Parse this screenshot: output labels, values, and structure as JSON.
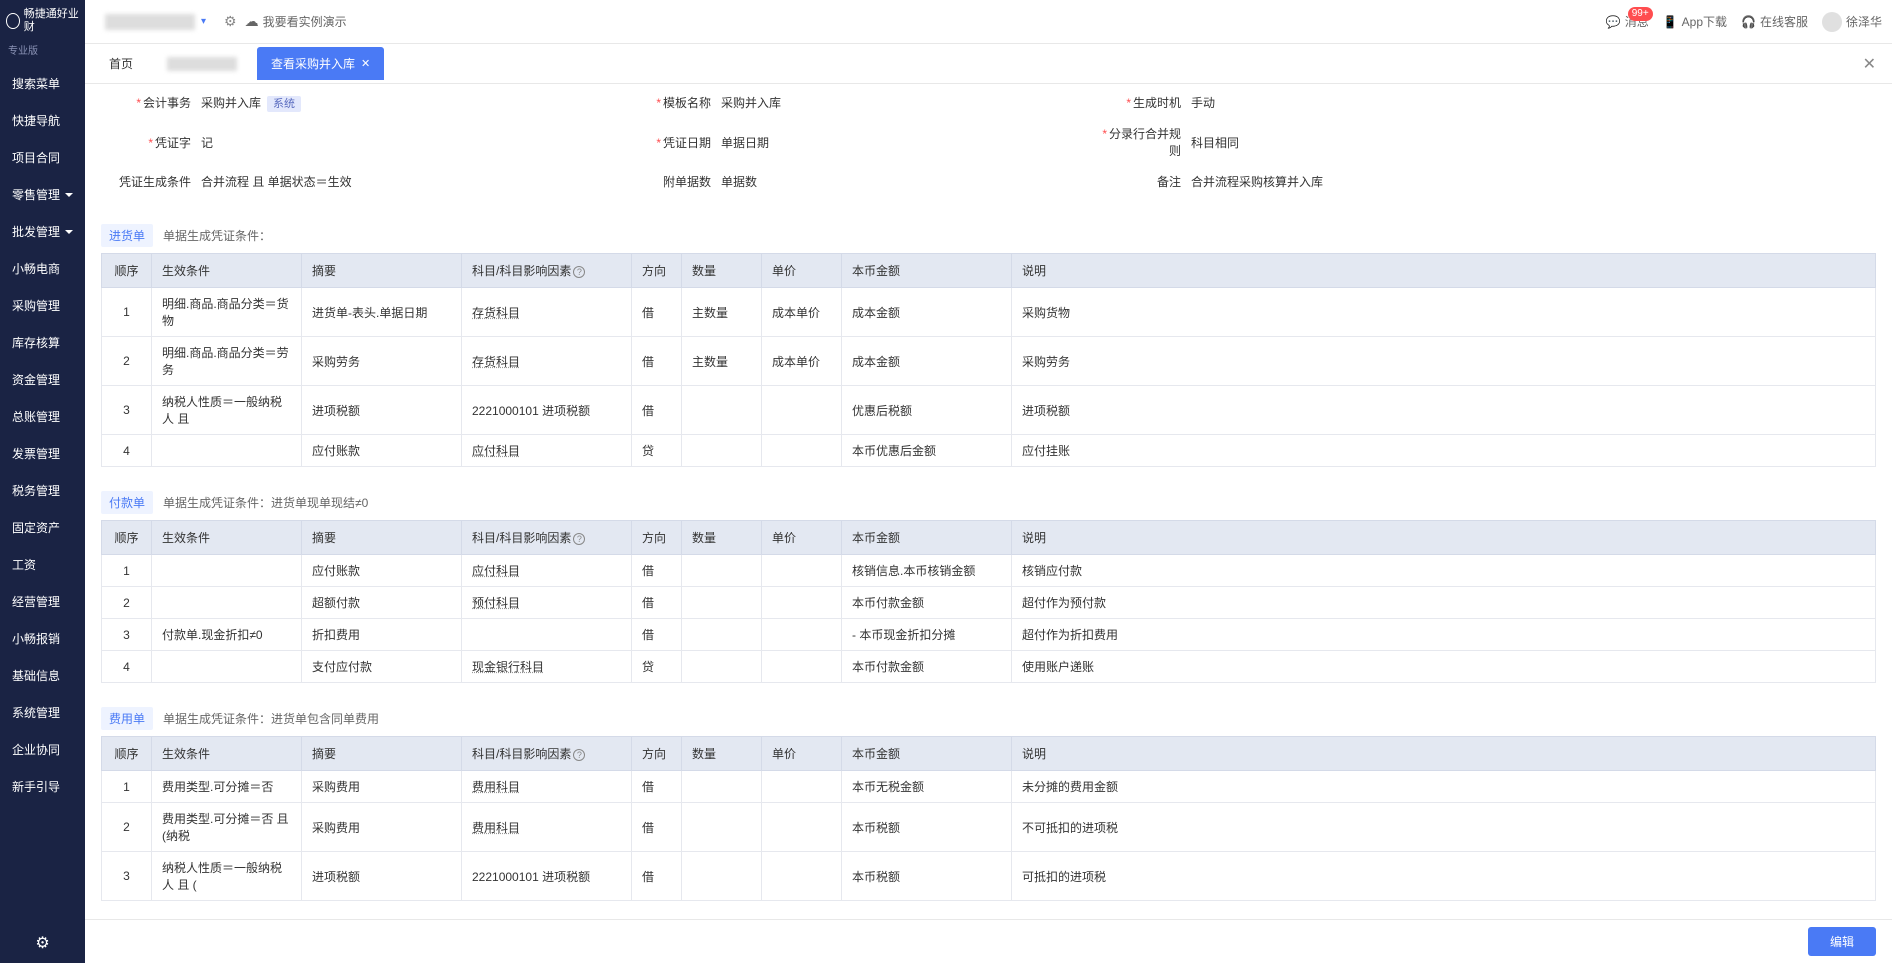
{
  "sidebar": {
    "logo_text": "畅捷通好业财",
    "version": "专业版",
    "items": [
      {
        "label": "搜索菜单",
        "arrow": false
      },
      {
        "label": "快捷导航",
        "arrow": false
      },
      {
        "label": "项目合同",
        "arrow": false
      },
      {
        "label": "零售管理",
        "arrow": true
      },
      {
        "label": "批发管理",
        "arrow": true
      },
      {
        "label": "小畅电商",
        "arrow": false
      },
      {
        "label": "采购管理",
        "arrow": false
      },
      {
        "label": "库存核算",
        "arrow": false
      },
      {
        "label": "资金管理",
        "arrow": false
      },
      {
        "label": "总账管理",
        "arrow": false
      },
      {
        "label": "发票管理",
        "arrow": false
      },
      {
        "label": "税务管理",
        "arrow": false
      },
      {
        "label": "固定资产",
        "arrow": false
      },
      {
        "label": "工资",
        "arrow": false
      },
      {
        "label": "经营管理",
        "arrow": false
      },
      {
        "label": "小畅报销",
        "arrow": false
      },
      {
        "label": "基础信息",
        "arrow": false
      },
      {
        "label": "系统管理",
        "arrow": false
      },
      {
        "label": "企业协同",
        "arrow": false
      },
      {
        "label": "新手引导",
        "arrow": false
      }
    ]
  },
  "topbar": {
    "demo": "我要看实例演示",
    "msg": "消息",
    "msg_badge": "99+",
    "app": "App下载",
    "service": "在线客服",
    "user": "徐泽华"
  },
  "tabs": {
    "home": "首页",
    "active": "查看采购并入库"
  },
  "form": {
    "row1": {
      "label1": "会计事务",
      "val1": "采购并入库",
      "tag": "系统",
      "label2": "模板名称",
      "val2": "采购并入库",
      "label3": "生成时机",
      "val3": "手动"
    },
    "row2": {
      "label1": "凭证字",
      "val1": "记",
      "label2": "凭证日期",
      "val2": "单据日期",
      "label3": "分录行合并规则",
      "val3": "科目相同"
    },
    "row3": {
      "label1": "凭证生成条件",
      "val1": "合并流程 且 单据状态＝生效",
      "label2": "附单据数",
      "val2": "单据数",
      "label3": "备注",
      "val3": "合并流程采购核算并入库"
    }
  },
  "table_columns": {
    "seq": "顺序",
    "cond": "生效条件",
    "abstract": "摘要",
    "subject": "科目/科目影响因素",
    "subject_plain": "科目/科目影响因素",
    "direction": "方向",
    "qty": "数量",
    "price": "单价",
    "amount": "本币金额",
    "desc": "说明"
  },
  "section1": {
    "title": "进货单",
    "cond": "单据生成凭证条件：",
    "rows": [
      {
        "seq": "1",
        "cond": "明细.商品.商品分类＝货物",
        "abstract": "进货单-表头.单据日期",
        "subject": "存货科目",
        "link": true,
        "dir": "借",
        "qty": "主数量",
        "price": "成本单价",
        "amount": "成本金额",
        "desc": "采购货物"
      },
      {
        "seq": "2",
        "cond": "明细.商品.商品分类＝劳务",
        "abstract": "采购劳务",
        "subject": "存货科目",
        "link": true,
        "dir": "借",
        "qty": "主数量",
        "price": "成本单价",
        "amount": "成本金额",
        "desc": "采购劳务"
      },
      {
        "seq": "3",
        "cond": "纳税人性质＝一般纳税人 且 ﻿",
        "abstract": "进项税额",
        "subject": "2221000101 进项税额",
        "link": false,
        "dir": "借",
        "qty": "",
        "price": "",
        "amount": "优惠后税额",
        "desc": "进项税额"
      },
      {
        "seq": "4",
        "cond": "",
        "abstract": "应付账款",
        "subject": "应付科目",
        "link": true,
        "dir": "贷",
        "qty": "",
        "price": "",
        "amount": "本币优惠后金额",
        "desc": "应付挂账"
      }
    ]
  },
  "section2": {
    "title": "付款单",
    "cond": "单据生成凭证条件：进货单现单现结≠0",
    "rows": [
      {
        "seq": "1",
        "cond": "",
        "abstract": "应付账款",
        "subject": "应付科目",
        "link": true,
        "dir": "借",
        "qty": "",
        "price": "",
        "amount": "核销信息.本币核销金额",
        "desc": "核销应付款"
      },
      {
        "seq": "2",
        "cond": "",
        "abstract": "超额付款",
        "subject": "预付科目",
        "link": true,
        "dir": "借",
        "qty": "",
        "price": "",
        "amount": "本币付款金额",
        "desc": "超付作为预付款"
      },
      {
        "seq": "3",
        "cond": "付款单.现金折扣≠0",
        "abstract": "折扣费用",
        "subject": "",
        "link": false,
        "dir": "借",
        "qty": "",
        "price": "",
        "amount": "- 本币现金折扣分摊",
        "desc": "超付作为折扣费用"
      },
      {
        "seq": "4",
        "cond": "",
        "abstract": "支付应付款",
        "subject": "现金银行科目",
        "link": true,
        "dir": "贷",
        "qty": "",
        "price": "",
        "amount": "本币付款金额",
        "desc": "使用账户递账"
      }
    ]
  },
  "section3": {
    "title": "费用单",
    "cond": "单据生成凭证条件：进货单包含同单费用",
    "rows": [
      {
        "seq": "1",
        "cond": "费用类型.可分摊＝否",
        "abstract": "采购费用",
        "subject": "费用科目",
        "link": true,
        "dir": "借",
        "qty": "",
        "price": "",
        "amount": "本币无税金额",
        "desc": "未分摊的费用金额"
      },
      {
        "seq": "2",
        "cond": "费用类型.可分摊＝否 且 (纳税",
        "abstract": "采购费用",
        "subject": "费用科目",
        "link": true,
        "dir": "借",
        "qty": "",
        "price": "",
        "amount": "本币税额",
        "desc": "不可抵扣的进项税"
      },
      {
        "seq": "3",
        "cond": "纳税人性质＝一般纳税人 且 (",
        "abstract": "进项税额",
        "subject": "2221000101 进项税额",
        "link": false,
        "dir": "借",
        "qty": "",
        "price": "",
        "amount": "本币税额",
        "desc": "可抵扣的进项税"
      }
    ]
  },
  "footer": {
    "edit": "编辑"
  }
}
